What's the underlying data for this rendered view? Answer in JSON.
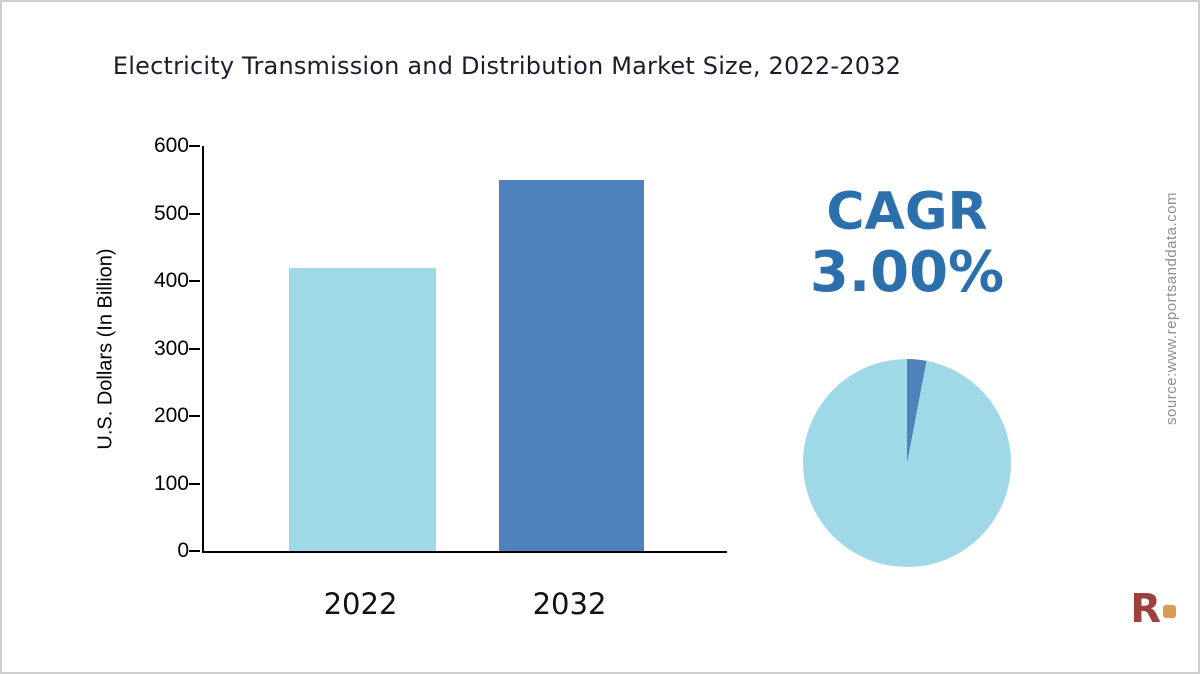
{
  "chart_data": {
    "type": "bar",
    "title": "Electricity Transmission and Distribution Market Size, 2022-2032",
    "categories": [
      "2022",
      "2032"
    ],
    "values": [
      420,
      550
    ],
    "ylabel": "U.S. Dollars (In Billion)",
    "xlabel": "",
    "ylim": [
      0,
      600
    ],
    "yticks": [
      0,
      100,
      200,
      300,
      400,
      500,
      600
    ],
    "bar_colors": [
      "#9fd9e8",
      "#4f81bd"
    ],
    "grid": false,
    "legend": "none"
  },
  "cagr": {
    "label": "CAGR",
    "value": "3.00%",
    "color": "#2c6fad"
  },
  "pie": {
    "type": "pie",
    "percent": 3,
    "slice_label": "CAGR 3.00%",
    "slice_color": "#4f81bd",
    "main_color": "#9fd9e8"
  },
  "source": "source:www.reportsanddata.com",
  "logo": {
    "letter": "R"
  }
}
